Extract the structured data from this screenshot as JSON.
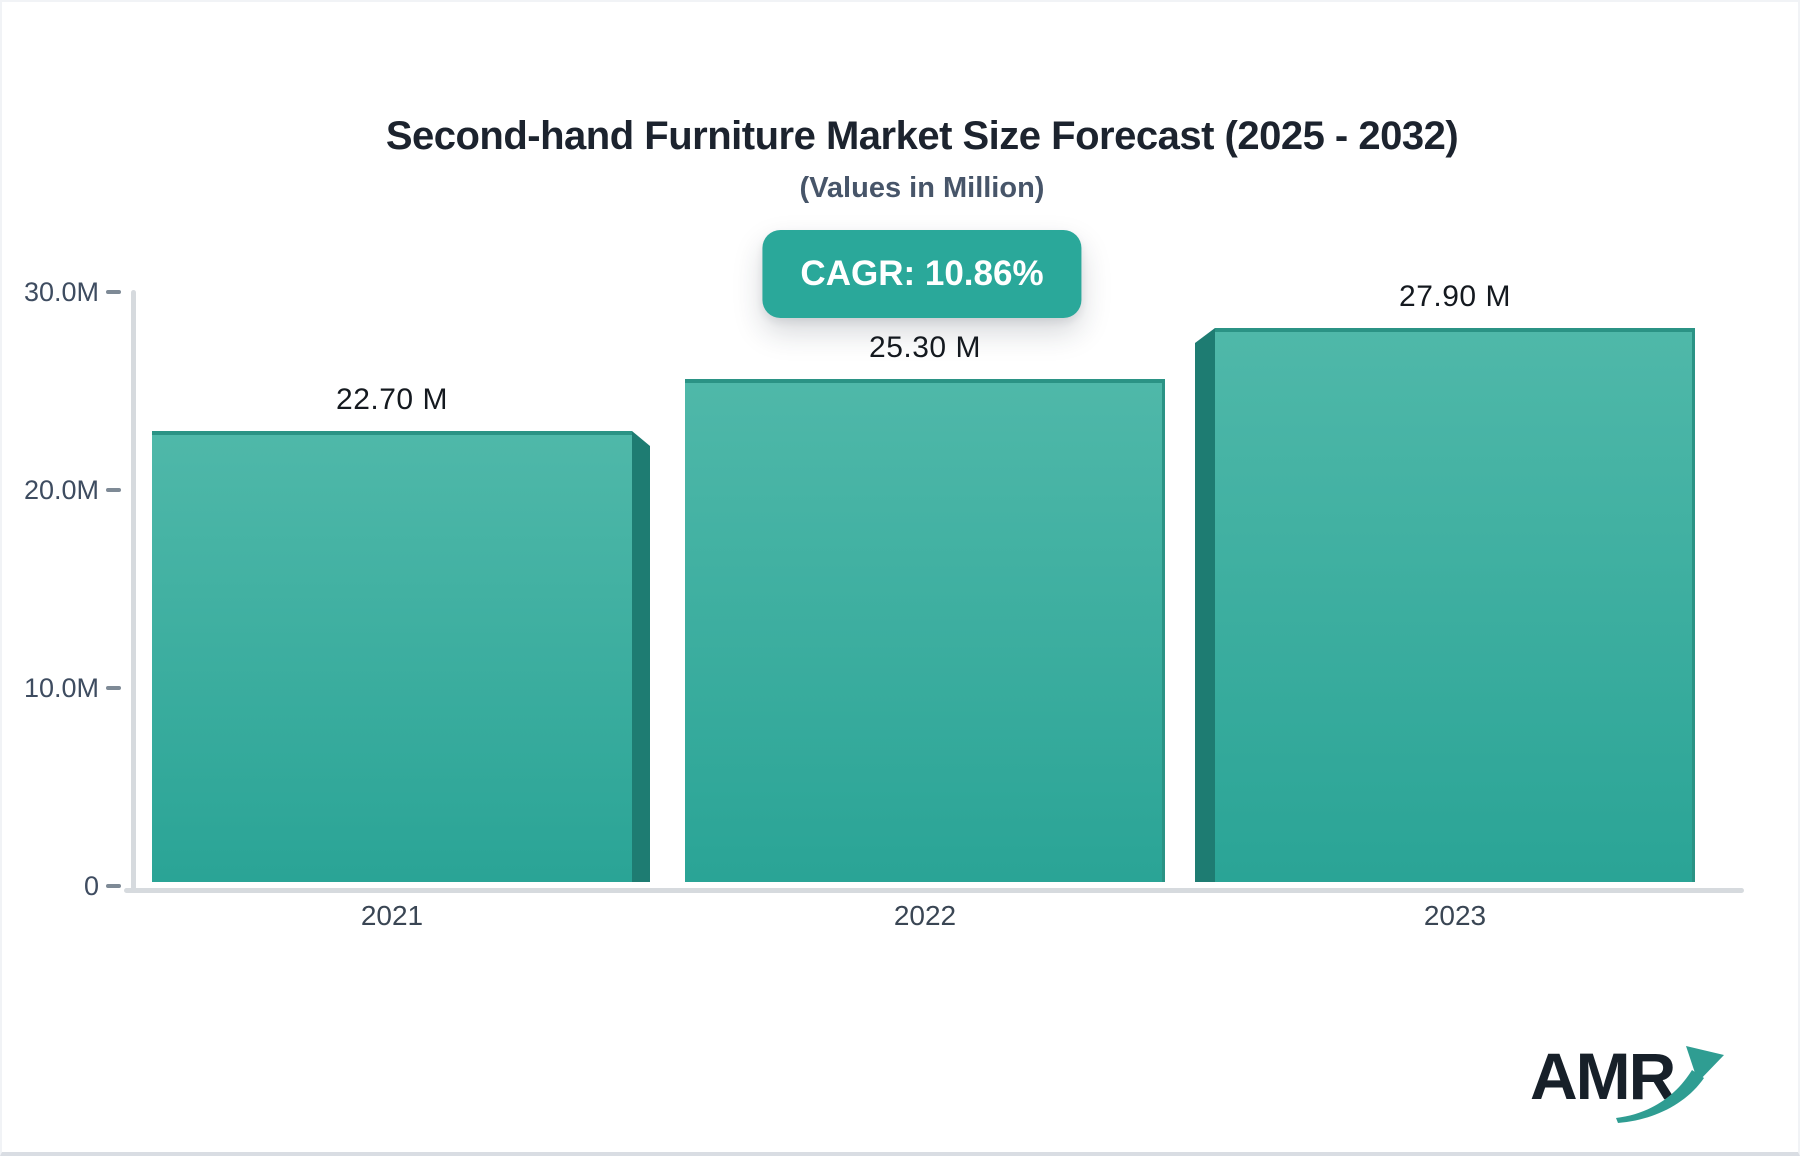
{
  "header": {
    "title": "Second-hand Furniture Market Size Forecast (2025 - 2032)",
    "subtitle": "(Values in Million)"
  },
  "badge": {
    "label": "CAGR: 10.86%"
  },
  "y_axis": {
    "tick_labels": [
      "30.0M",
      "20.0M",
      "10.0M",
      "0"
    ]
  },
  "bars": [
    {
      "year": "2021",
      "value_label": "22.70 M",
      "value": 22.7
    },
    {
      "year": "2022",
      "value_label": "25.30 M",
      "value": 25.3
    },
    {
      "year": "2023",
      "value_label": "27.90 M",
      "value": 27.9
    }
  ],
  "logo": {
    "text": "AMR"
  },
  "colors": {
    "bar_gradient_top": "#4fb8a9",
    "bar_gradient_bottom": "#2aa496",
    "bar_side_panel": "#1e7c72",
    "bar_edge": "#2b9385",
    "badge_background": "#2aa89a",
    "badge_text": "#ffffff",
    "axis_line": "#d6dade",
    "tick_dash": "#7e8a96",
    "y_label_text": "#3e4c60",
    "x_label_text": "#3a4654",
    "title_text": "#1c232e",
    "subtitle_text": "#475569",
    "value_label_text": "#14191f",
    "logo_text": "#172029",
    "logo_arrow": "#2f9d92"
  },
  "chart_data": {
    "type": "bar",
    "title": "Second-hand Furniture Market Size Forecast (2025 - 2032)",
    "subtitle": "(Values in Million)",
    "categories": [
      "2021",
      "2022",
      "2023"
    ],
    "values": [
      22.7,
      25.3,
      27.9
    ],
    "data_labels": [
      "22.70 M",
      "25.30 M",
      "27.90 M"
    ],
    "unit": "Million",
    "ylim": [
      0,
      30
    ],
    "y_ticks": [
      0,
      10,
      20,
      30
    ],
    "y_tick_labels": [
      "0",
      "10.0M",
      "20.0M",
      "30.0M"
    ],
    "annotations": [
      "CAGR: 10.86%"
    ],
    "grid": false,
    "legend": false,
    "xlabel": "",
    "ylabel": ""
  }
}
